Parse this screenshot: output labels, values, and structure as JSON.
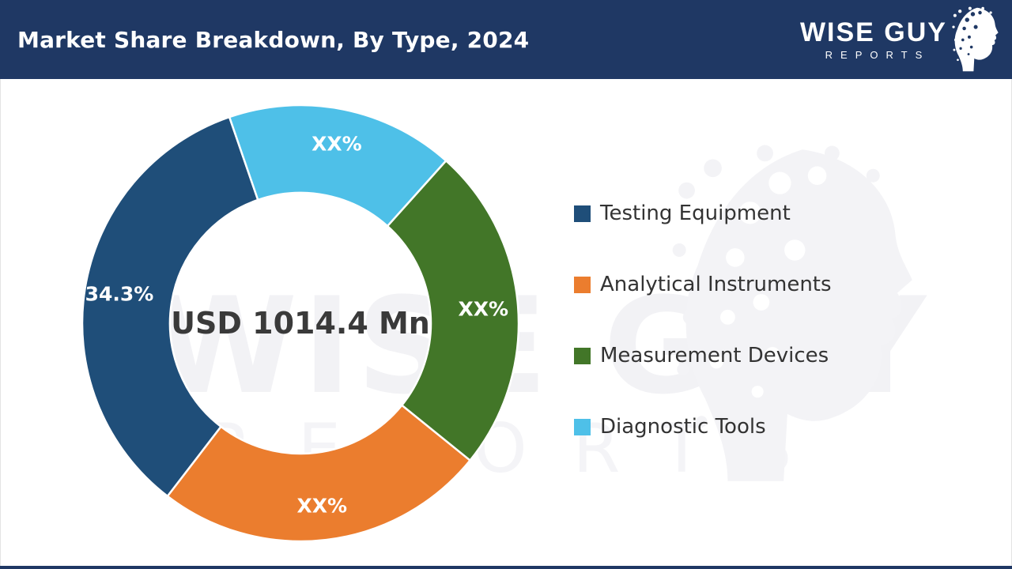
{
  "header": {
    "title": "Market Share Breakdown, By Type, 2024",
    "background_color": "#1F3864",
    "logo": {
      "line1": "WISE GUY",
      "line2": "REPORTS"
    }
  },
  "watermark": {
    "line1": "WISE GUY",
    "line2": "REPORTS"
  },
  "chart_data": {
    "type": "pie",
    "variant": "donut",
    "title": "Market Share Breakdown, By Type, 2024",
    "center_label": "USD 1014.4 Mn",
    "start_angle_deg": 109,
    "direction": "counterclockwise",
    "legend_position": "right",
    "segments": [
      {
        "id": "testing-equipment",
        "name": "Testing Equipment",
        "display_label": "34.3%",
        "share_pct_est": 34.3,
        "color": "#1F4E79"
      },
      {
        "id": "analytical-instruments",
        "name": "Analytical Instruments",
        "display_label": "XX%",
        "share_pct_est": 24.6,
        "color": "#EB7D2E"
      },
      {
        "id": "measurement-devices",
        "name": "Measurement Devices",
        "display_label": "XX%",
        "share_pct_est": 24.2,
        "color": "#427628"
      },
      {
        "id": "diagnostic-tools",
        "name": "Diagnostic Tools",
        "display_label": "XX%",
        "share_pct_est": 16.9,
        "color": "#4EC0E8"
      }
    ]
  }
}
